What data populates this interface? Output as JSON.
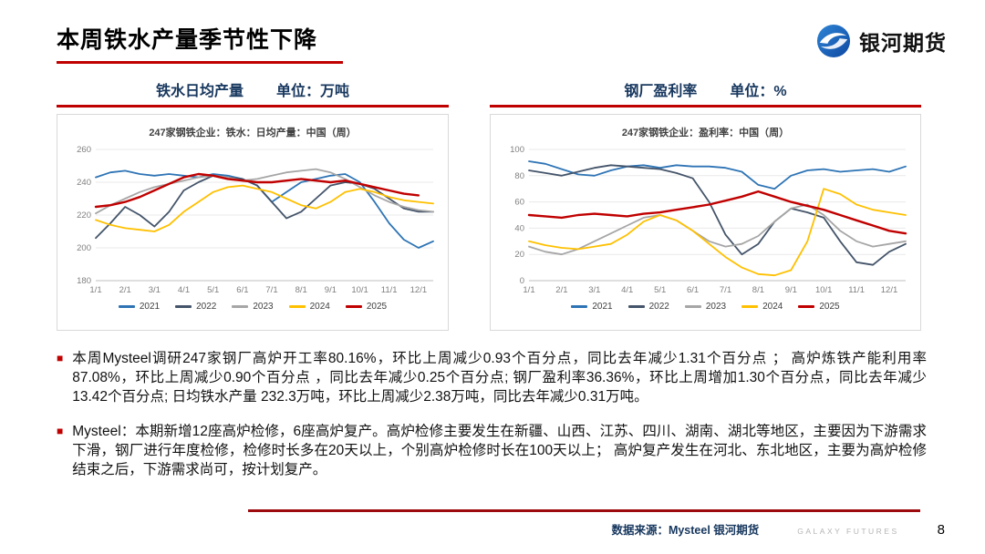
{
  "slide": {
    "title": "本周铁水产量季节性下降",
    "logo_text": "银河期货",
    "footer_source": "数据来源：Mysteel 银河期货",
    "footer_watermark": "GALAXY FUTURES",
    "page_number": "8"
  },
  "colors": {
    "accent_red": "#c00000",
    "header_blue": "#17375e",
    "logo_blue": "#1565c0"
  },
  "bullets": [
    "本周Mysteel调研247家钢厂高炉开工率80.16%，环比上周减少0.93个百分点，同比去年减少1.31个百分点 ； 高炉炼铁产能利用率87.08%，环比上周减少0.90个百分点 ，同比去年减少0.25个百分点; 钢厂盈利率36.36%，环比上周增加1.30个百分点，同比去年减少13.42个百分点; 日均铁水产量 232.3万吨，环比上周减少2.38万吨，同比去年减少0.31万吨。",
    "Mysteel：本期新增12座高炉检修，6座高炉复产。高炉检修主要发生在新疆、山西、江苏、四川、湖南、湖北等地区，主要因为下游需求下滑，钢厂进行年度检修，检修时长多在20天以上，个别高炉检修时长在100天以上； 高炉复产发生在河北、东北地区，主要为高炉检修结束之后，下游需求尚可，按计划复产。"
  ],
  "chart_data": [
    {
      "type": "line",
      "header": "铁水日均产量",
      "unit_label": "单位：万吨",
      "title": "247家钢铁企业：铁水：日均产量：中国（周）",
      "ylim": [
        180,
        260
      ],
      "y_ticks": [
        180,
        200,
        220,
        240,
        260
      ],
      "x_tick_labels": [
        "1/1",
        "2/1",
        "3/1",
        "4/1",
        "5/1",
        "6/1",
        "7/1",
        "8/1",
        "9/1",
        "10/1",
        "11/1",
        "12/1"
      ],
      "grid": true,
      "legend_position": "bottom",
      "series": [
        {
          "name": "2021",
          "color": "#2e74b5",
          "values": [
            243,
            246,
            247,
            245,
            244,
            245,
            244,
            243,
            245,
            244,
            242,
            238,
            228,
            234,
            240,
            242,
            244,
            245,
            240,
            228,
            215,
            205,
            200,
            204
          ]
        },
        {
          "name": "2022",
          "color": "#44546a",
          "values": [
            206,
            215,
            225,
            220,
            213,
            222,
            235,
            240,
            244,
            243,
            242,
            238,
            228,
            218,
            222,
            230,
            238,
            240,
            239,
            236,
            230,
            224,
            222,
            222
          ]
        },
        {
          "name": "2023",
          "color": "#a6a6a6",
          "values": [
            221,
            226,
            230,
            234,
            237,
            239,
            241,
            243,
            244,
            243,
            241,
            242,
            244,
            246,
            247,
            248,
            246,
            242,
            237,
            232,
            228,
            225,
            223,
            222
          ]
        },
        {
          "name": "2024",
          "color": "#ffc000",
          "values": [
            217,
            214,
            212,
            211,
            210,
            214,
            222,
            228,
            234,
            237,
            238,
            236,
            234,
            230,
            226,
            224,
            228,
            234,
            236,
            234,
            231,
            229,
            228,
            227
          ]
        },
        {
          "name": "2025",
          "color": "#c00000",
          "values": [
            225,
            226,
            228,
            231,
            235,
            239,
            243,
            245,
            244,
            242,
            241,
            240,
            240,
            241,
            242,
            241,
            240,
            241,
            239,
            237,
            235,
            233,
            232
          ]
        }
      ]
    },
    {
      "type": "line",
      "header": "钢厂盈利率",
      "unit_label": "单位：%",
      "title": "247家钢铁企业：盈利率：中国（周）",
      "ylim": [
        0,
        100
      ],
      "y_ticks": [
        0,
        20,
        40,
        60,
        80,
        100
      ],
      "x_tick_labels": [
        "1/1",
        "2/1",
        "3/1",
        "4/1",
        "5/1",
        "6/1",
        "7/1",
        "8/1",
        "9/1",
        "10/1",
        "11/1",
        "12/1"
      ],
      "grid": true,
      "legend_position": "bottom",
      "series": [
        {
          "name": "2021",
          "color": "#2e74b5",
          "values": [
            91,
            89,
            85,
            81,
            80,
            84,
            87,
            88,
            86,
            88,
            87,
            87,
            86,
            83,
            73,
            70,
            80,
            84,
            85,
            83,
            84,
            85,
            83,
            87
          ]
        },
        {
          "name": "2022",
          "color": "#44546a",
          "values": [
            84,
            82,
            80,
            83,
            86,
            88,
            87,
            86,
            85,
            82,
            78,
            60,
            35,
            20,
            28,
            45,
            55,
            52,
            48,
            30,
            14,
            12,
            22,
            28
          ]
        },
        {
          "name": "2023",
          "color": "#a6a6a6",
          "values": [
            26,
            22,
            20,
            24,
            30,
            36,
            42,
            48,
            50,
            46,
            38,
            30,
            26,
            28,
            34,
            45,
            55,
            58,
            50,
            38,
            30,
            26,
            28,
            30
          ]
        },
        {
          "name": "2024",
          "color": "#ffc000",
          "values": [
            30,
            27,
            25,
            24,
            26,
            28,
            35,
            45,
            50,
            46,
            38,
            28,
            18,
            10,
            5,
            4,
            8,
            30,
            70,
            66,
            58,
            54,
            52,
            50
          ]
        },
        {
          "name": "2025",
          "color": "#c00000",
          "values": [
            50,
            49,
            48,
            50,
            51,
            50,
            49,
            51,
            52,
            54,
            56,
            58,
            61,
            64,
            68,
            64,
            60,
            57,
            54,
            50,
            46,
            42,
            38,
            36
          ]
        }
      ]
    }
  ]
}
